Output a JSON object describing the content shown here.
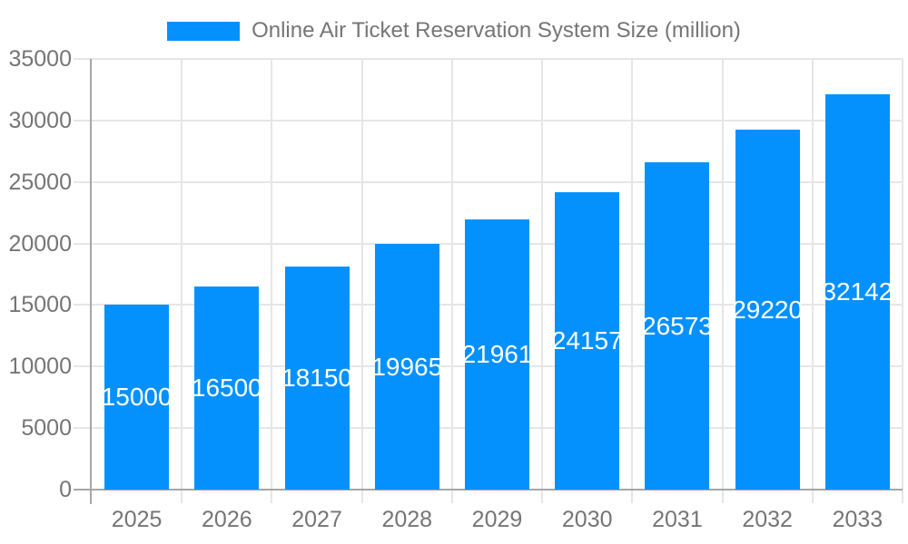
{
  "legend": {
    "label": "Online Air Ticket Reservation System Size (million)"
  },
  "colors": {
    "bar": "#0591fd",
    "bar_label": "#ffffff",
    "axis_text": "#757575",
    "axis_line": "#a6a6a6",
    "grid_line": "#e6e6e6",
    "background": "#ffffff"
  },
  "chart_data": {
    "type": "bar",
    "title": "Online Air Ticket Reservation System Size (million)",
    "categories": [
      "2025",
      "2026",
      "2027",
      "2028",
      "2029",
      "2030",
      "2031",
      "2032",
      "2033"
    ],
    "values": [
      15000,
      16500,
      18150,
      19965,
      21961,
      24157,
      26573,
      29220,
      32142
    ],
    "xlabel": "",
    "ylabel": "",
    "ylim": [
      0,
      35000
    ],
    "ytick_step": 5000,
    "yticks": [
      0,
      5000,
      10000,
      15000,
      20000,
      25000,
      30000,
      35000
    ],
    "grid": true,
    "legend_position": "top",
    "value_labels": "inside-center"
  }
}
